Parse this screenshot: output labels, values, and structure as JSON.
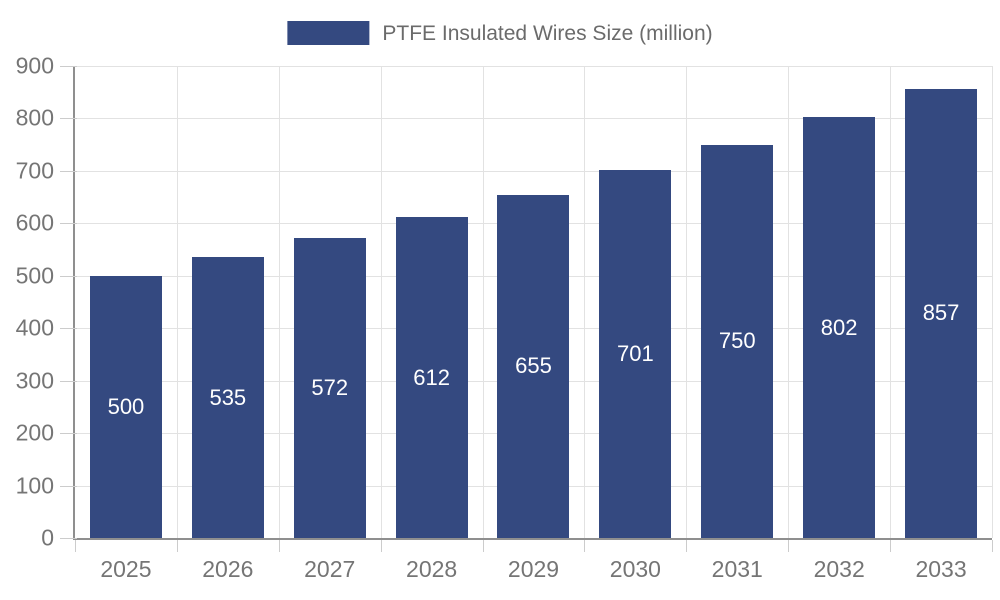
{
  "legend": {
    "label": "PTFE Insulated Wires Size (million)"
  },
  "colors": {
    "bar": "#344980",
    "grid": "#e2e2e2",
    "spine": "#8f8f8f",
    "tick": "#cccccc",
    "axis_text": "#757575",
    "legend_text": "#6b6b6b",
    "value_text": "#ffffff",
    "background": "#ffffff"
  },
  "chart_data": {
    "type": "bar",
    "title": "PTFE Insulated Wires Size (million)",
    "categories": [
      "2025",
      "2026",
      "2027",
      "2028",
      "2029",
      "2030",
      "2031",
      "2032",
      "2033"
    ],
    "values": [
      500,
      535,
      572,
      612,
      655,
      701,
      750,
      802,
      857
    ],
    "series": [
      {
        "name": "PTFE Insulated Wires Size (million)",
        "values": [
          500,
          535,
          572,
          612,
          655,
          701,
          750,
          802,
          857
        ]
      }
    ],
    "xlabel": "",
    "ylabel": "",
    "ylim": [
      0,
      900
    ],
    "yticks": [
      0,
      100,
      200,
      300,
      400,
      500,
      600,
      700,
      800,
      900
    ],
    "grid": true,
    "bar_value_labels": true,
    "legend_position": "top-center"
  }
}
